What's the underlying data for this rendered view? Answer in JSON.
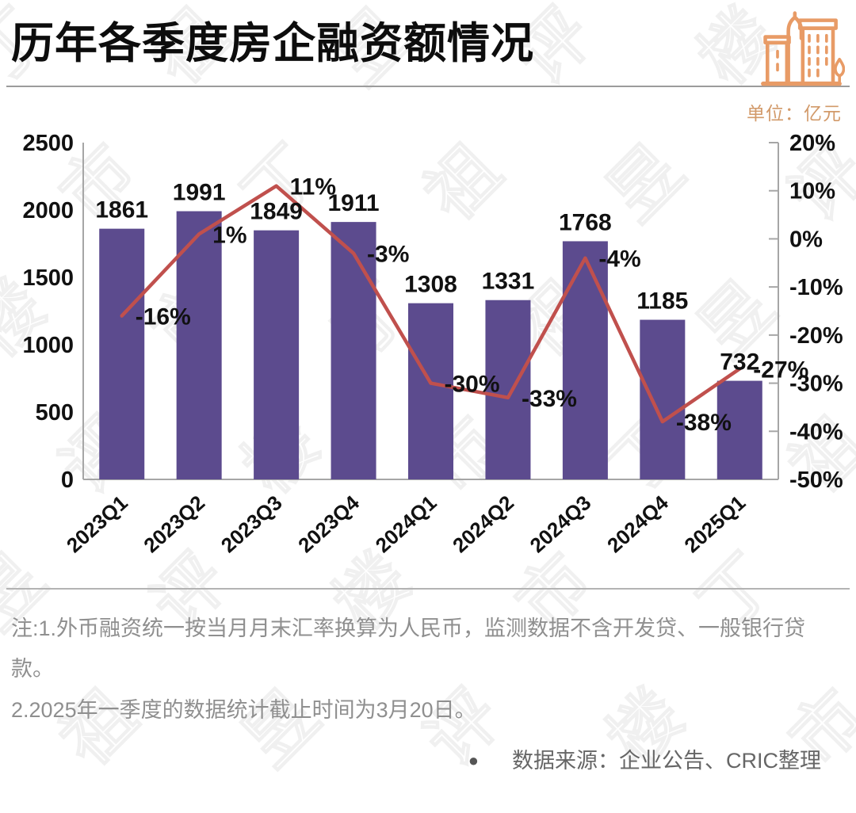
{
  "header": {
    "title": "历年各季度房企融资额情况"
  },
  "unit_label": "单位：亿元",
  "chart_data": {
    "type": "bar+line",
    "title": "历年各季度房企融资额情况",
    "categories": [
      "2023Q1",
      "2023Q2",
      "2023Q3",
      "2023Q4",
      "2024Q1",
      "2024Q2",
      "2024Q3",
      "2024Q4",
      "2025Q1"
    ],
    "series": [
      {
        "type": "bar",
        "axis": "left",
        "color": "#5c4b8e",
        "values": [
          1861,
          1991,
          1849,
          1911,
          1308,
          1331,
          1768,
          1185,
          732
        ],
        "value_labels": [
          "1861",
          "1991",
          "1849",
          "1911",
          "1308",
          "1331",
          "1768",
          "1185",
          "732"
        ]
      },
      {
        "type": "line",
        "axis": "right",
        "color": "#c0504d",
        "values": [
          -16,
          1,
          11,
          -3,
          -30,
          -33,
          -4,
          -38,
          -27
        ],
        "value_labels": [
          "-16%",
          "1%",
          "11%",
          "-3%",
          "-30%",
          "-33%",
          "-4%",
          "-38%",
          "-27%"
        ]
      }
    ],
    "left_axis": {
      "min": 0,
      "max": 2500,
      "tick_labels": [
        "2500",
        "2000",
        "1500",
        "1000",
        "500",
        "0"
      ]
    },
    "right_axis": {
      "min": -50,
      "max": 20,
      "tick_labels": [
        "20%",
        "10%",
        "0%",
        "-10%",
        "-20%",
        "-30%",
        "-40%",
        "-50%"
      ]
    },
    "legend": "none",
    "grid": false
  },
  "notes": {
    "note1": "注:1.外币融资统一按当月月末汇率换算为人民币，监测数据不含开发贷、一般银行贷款。",
    "note2": "2.2025年一季度的数据统计截止时间为3月20日。"
  },
  "source": {
    "bullet": "●",
    "text": "数据来源：企业公告、CRIC整理"
  },
  "watermark_text": "丁祖昱评楼市",
  "colors": {
    "bar": "#5c4b8e",
    "line": "#c0504d",
    "unit_text": "#d29a6a",
    "axis": "#a6a6a6",
    "icon": "#e89b66",
    "label_text": "#111111"
  }
}
